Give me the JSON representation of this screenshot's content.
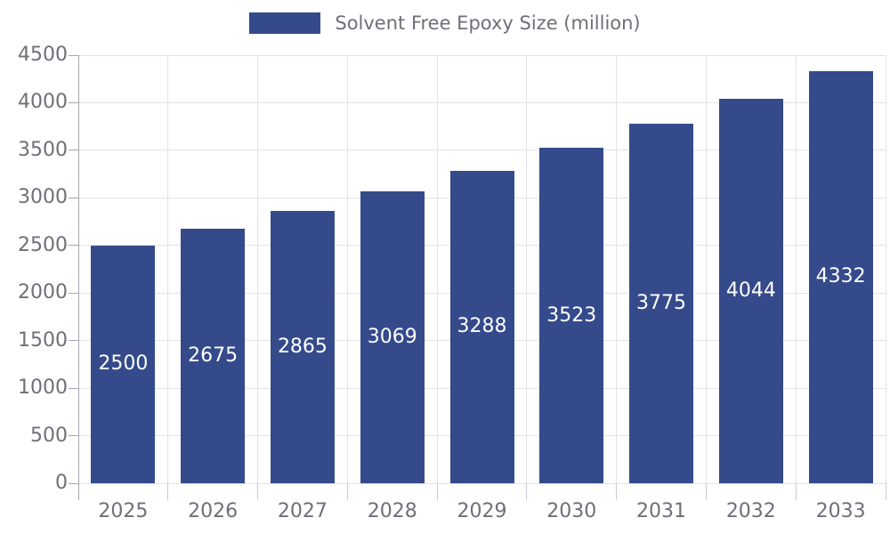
{
  "chart_data": {
    "type": "bar",
    "title": "Solvent Free Epoxy Size (million)",
    "legend": {
      "label": "Solvent Free Epoxy Size (million)",
      "position": "top-center"
    },
    "categories": [
      "2025",
      "2026",
      "2027",
      "2028",
      "2029",
      "2030",
      "2031",
      "2032",
      "2033"
    ],
    "series": [
      {
        "name": "Solvent Free Epoxy Size (million)",
        "values": [
          2500,
          2675,
          2865,
          3069,
          3288,
          3523,
          3775,
          4044,
          4332
        ]
      }
    ],
    "bar_value_labels": [
      "2500",
      "2675",
      "2865",
      "3069",
      "3288",
      "3523",
      "3775",
      "4044",
      "4332"
    ],
    "xlabel": "",
    "ylabel": "",
    "ylim": [
      0,
      4500
    ],
    "ytick_step": 500,
    "ytick_labels": [
      "0",
      "500",
      "1000",
      "1500",
      "2000",
      "2500",
      "3000",
      "3500",
      "4000",
      "4500"
    ],
    "grid": true,
    "colors": {
      "bar": "#344A8B",
      "bar_value_label": "#FFFFFF",
      "axis_text": "#6E7079",
      "legend_text": "#6E7079",
      "grid_line": "#E3E3E6",
      "axis_line": "#A3A6AD",
      "x_tick": "#C9CBD1",
      "background": "#FFFFFF"
    }
  }
}
